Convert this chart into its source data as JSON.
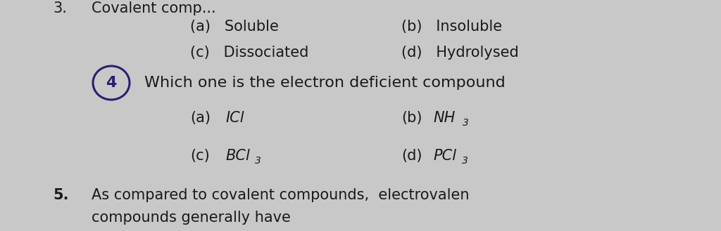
{
  "bg_color": "#c8c8c8",
  "paper_color": "#dcdcdc",
  "text_color": "#1a1a1a",
  "dark_color": "#111111",
  "q3_number": "3.",
  "q3_text": "Covalent comp...",
  "opt_a1": "(a)   Soluble",
  "opt_b1": "(b)   Insoluble",
  "opt_c1": "(c)   Dissociated",
  "opt_d1": "(d)   Hydrolysed",
  "q4_text": "Which one is the electron deficient compound",
  "opt_a_label": "(a)",
  "opt_a_val": "ICl",
  "opt_b_label": "(b)",
  "opt_b_val_main": "NH",
  "opt_b_val_sub": "3",
  "opt_c_label": "(c)",
  "opt_c_val_main": "BCl",
  "opt_c_val_sub": "3",
  "opt_d_label": "(d)",
  "opt_d_val_main": "PCl",
  "opt_d_val_sub": "3",
  "q5_number": "5.",
  "q5_line1": "As compared to covalent compounds,  electrovalen",
  "q5_line2": "compounds generally have",
  "circle_color": "#2a2070",
  "fontsize_main": 15,
  "fontsize_sub": 10
}
